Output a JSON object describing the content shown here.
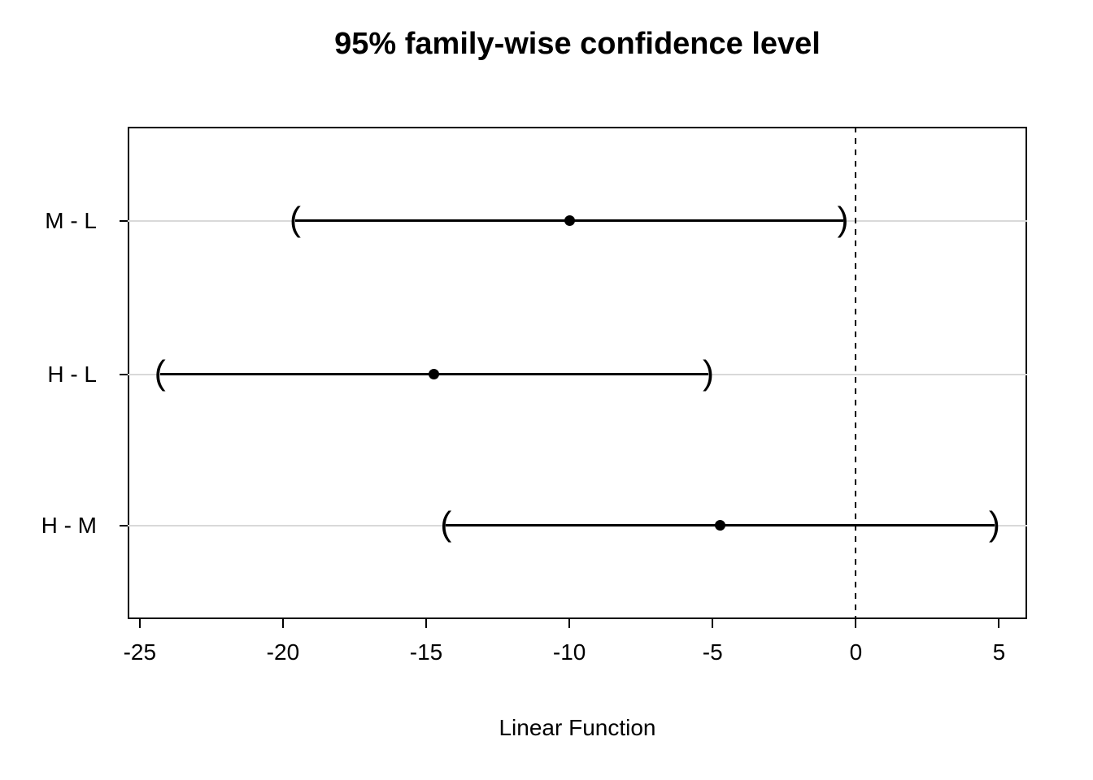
{
  "chart_data": {
    "type": "ci-interval",
    "title": "95% family-wise confidence level",
    "xlabel": "Linear Function",
    "x_ticks": [
      -25,
      -20,
      -15,
      -10,
      -5,
      0,
      5
    ],
    "x_tick_labels": [
      "-25",
      "-20",
      "-15",
      "-10",
      "-5",
      "0",
      "5"
    ],
    "xlim": [
      -25.42,
      5.98
    ],
    "reference_line_x": 0,
    "grid": "horizontal-light",
    "legend": "none",
    "endpoint_glyphs": [
      "(",
      ")"
    ],
    "comparisons": [
      {
        "label": "M - L",
        "estimate": -10.0,
        "lower": -19.57,
        "upper": -0.45
      },
      {
        "label": "H - L",
        "estimate": -14.72,
        "lower": -24.29,
        "upper": -5.15
      },
      {
        "label": "H - M",
        "estimate": -4.74,
        "lower": -14.31,
        "upper": 4.84
      }
    ],
    "colors": {
      "line": "#000000",
      "gridline": "#d9d9d9",
      "reference_line": "#000000",
      "background": "#ffffff"
    }
  }
}
